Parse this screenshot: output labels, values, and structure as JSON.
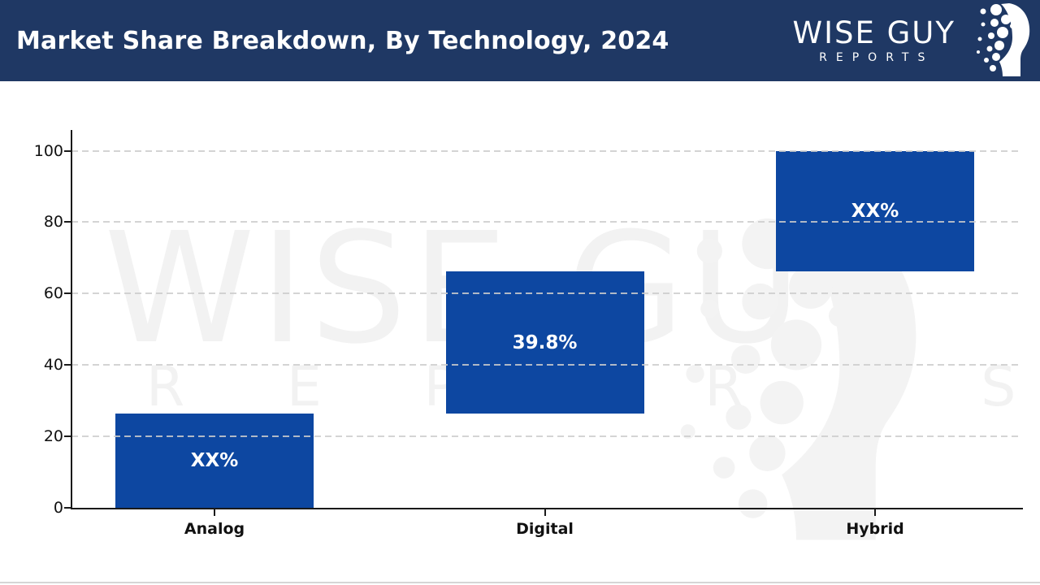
{
  "header": {
    "title": "Market Share Breakdown, By Technology, 2024",
    "bg_color": "#1f3864",
    "logo": {
      "line1": "WISE GUY",
      "line2": "REPORTS"
    }
  },
  "watermark": {
    "line1": "WISE GUY",
    "line2": "REPORTS"
  },
  "chart_data": {
    "type": "bar",
    "subtype": "floating-segment-waterfall",
    "title": "Market Share Breakdown, By Technology, 2024",
    "categories": [
      "Analog",
      "Digital",
      "Hybrid"
    ],
    "segments": [
      {
        "category": "Analog",
        "start": 0,
        "end": 26.4,
        "label": "XX%"
      },
      {
        "category": "Digital",
        "start": 26.4,
        "end": 66.2,
        "label": "39.8%"
      },
      {
        "category": "Hybrid",
        "start": 66.2,
        "end": 100,
        "label": "XX%"
      }
    ],
    "xlabel": "",
    "ylabel": "",
    "yticks": [
      0,
      20,
      40,
      60,
      80,
      100
    ],
    "ylim": [
      0,
      105.8
    ],
    "grid": "horizontal-dashed-over-bars",
    "bar_color": "#0d47a1",
    "bar_label_color": "#ffffff",
    "axis_color": "#1a1a1a",
    "gridline_color": "#cdcdcd",
    "watermark_color": "#f2f2f2",
    "header_bg": "#1f3864",
    "header_text_color": "#ffffff"
  }
}
